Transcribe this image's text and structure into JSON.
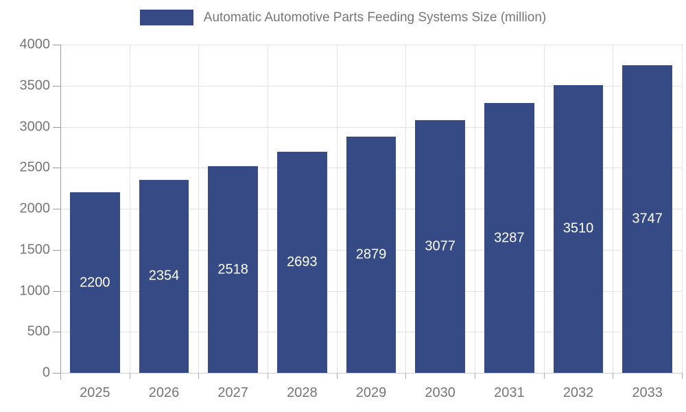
{
  "legend": {
    "label": "Automatic Automotive Parts Feeding Systems Size (million)"
  },
  "chart_data": {
    "type": "bar",
    "title": "Automatic Automotive Parts Feeding Systems Size (million)",
    "categories": [
      "2025",
      "2026",
      "2027",
      "2028",
      "2029",
      "2030",
      "2031",
      "2032",
      "2033"
    ],
    "values": [
      2200,
      2354,
      2518,
      2693,
      2879,
      3077,
      3287,
      3510,
      3747
    ],
    "yticks": [
      0,
      500,
      1000,
      1500,
      2000,
      2500,
      3000,
      3500,
      4000
    ],
    "ylim": [
      0,
      4000
    ],
    "xlabel": "",
    "ylabel": "",
    "grid": true,
    "legend_position": "top-center",
    "value_labels": "inside-center",
    "colors": {
      "bar": "#364a85",
      "value_label": "#ffffff",
      "axis_text": "#757575",
      "legend_text": "#767676",
      "gridline": "#e2e2e2",
      "y_axis_line": "#999999",
      "x_axis_line": "#cccccc"
    }
  }
}
